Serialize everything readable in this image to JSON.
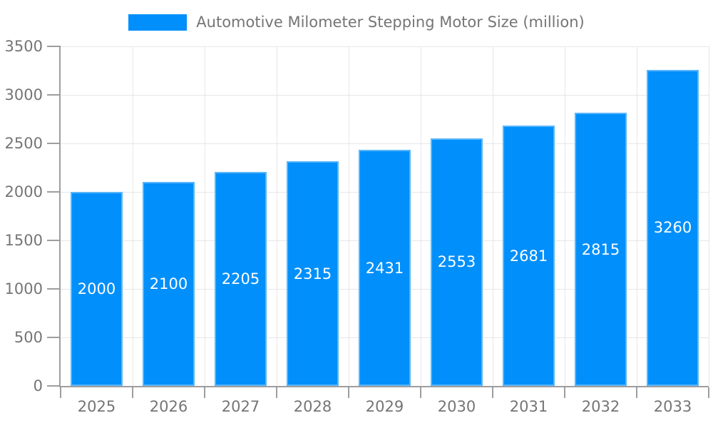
{
  "chart_data": {
    "type": "bar",
    "title": "Automotive Milometer Stepping Motor Size (million)",
    "series_name": "Automotive Milometer Stepping Motor Size (million)",
    "categories": [
      "2025",
      "2026",
      "2027",
      "2028",
      "2029",
      "2030",
      "2031",
      "2032",
      "2033"
    ],
    "values": [
      2000,
      2100,
      2205,
      2315,
      2431,
      2553,
      2681,
      2815,
      3260
    ],
    "xlabel": "",
    "ylabel": "",
    "ylim": [
      0,
      3500
    ],
    "ytick_step": 500,
    "yticks": [
      0,
      500,
      1000,
      1500,
      2000,
      2500,
      3000,
      3500
    ],
    "grid": "horizontal and vertical",
    "legend_position": "top",
    "data_label_position": "center of bar",
    "colors": {
      "bar": "#008ffb",
      "bar_edge": "rgba(255,255,255,0.35)",
      "axis_line": "#9e9e9e",
      "gridline": "#e7e7e7",
      "axis_text": "#757575",
      "data_label_text": "#ffffff",
      "background": "#ffffff"
    }
  }
}
